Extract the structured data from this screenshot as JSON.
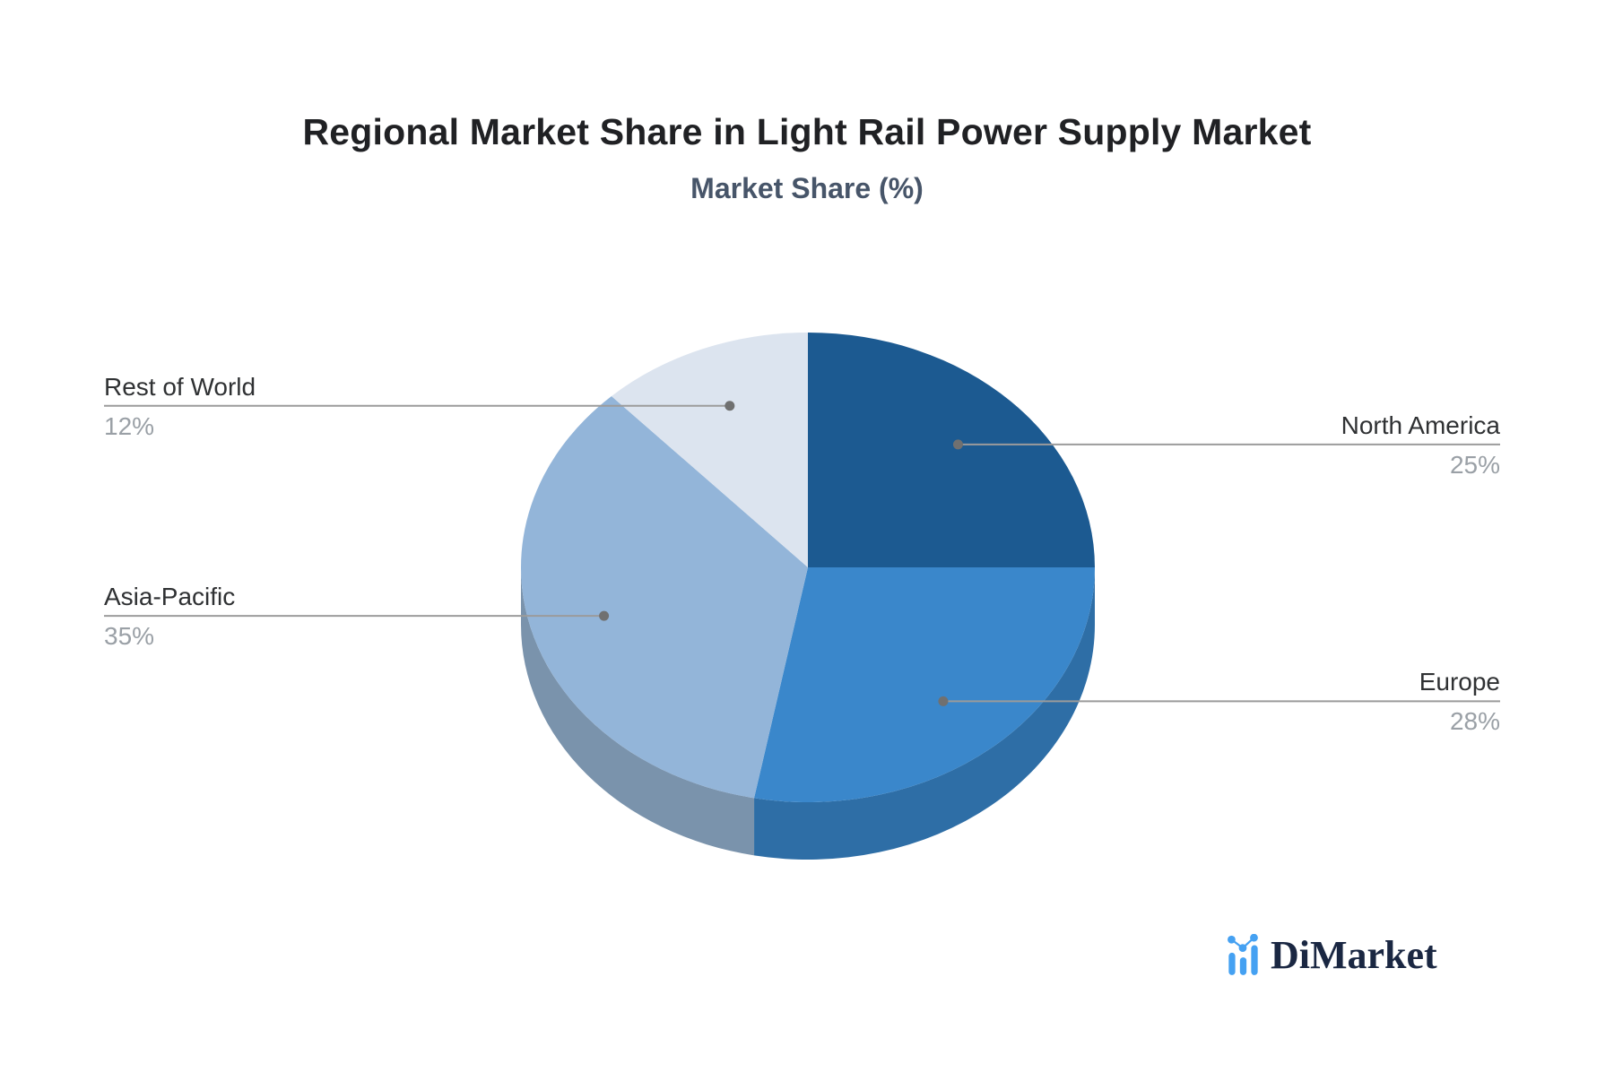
{
  "chart_data": {
    "type": "pie",
    "style": "3d",
    "title": "Regional Market Share in Light Rail Power Supply Market",
    "subtitle": "Market Share (%)",
    "unit": "%",
    "start_angle": "top",
    "direction": "clockwise",
    "legend_position": "callout-labels",
    "categories": [
      "North America",
      "Europe",
      "Asia-Pacific",
      "Rest of World"
    ],
    "values": [
      25,
      28,
      35,
      12
    ],
    "slices": [
      {
        "label": "North America",
        "value": 25,
        "display": "25%",
        "color": "#1C5A91",
        "side_color": "#16486F"
      },
      {
        "label": "Europe",
        "value": 28,
        "display": "28%",
        "color": "#3A87CB",
        "side_color": "#2E6EA6"
      },
      {
        "label": "Asia-Pacific",
        "value": 35,
        "display": "35%",
        "color": "#93B5D9",
        "side_color": "#7A93AC"
      },
      {
        "label": "Rest of World",
        "value": 12,
        "display": "12%",
        "color": "#DCE4EF",
        "side_color": "#B4BFCE"
      }
    ],
    "title_color": "#202124",
    "subtitle_color": "#475569",
    "label_color": "#2F3133",
    "pct_color": "#9AA0A6",
    "leader_line_color": "#9B9B9B",
    "leader_dot_color": "#707070"
  },
  "logo": {
    "text": "DiMarket",
    "icon": "bar-line-chart-icon",
    "icon_color": "#45A1F2",
    "text_color": "#1A2742"
  }
}
